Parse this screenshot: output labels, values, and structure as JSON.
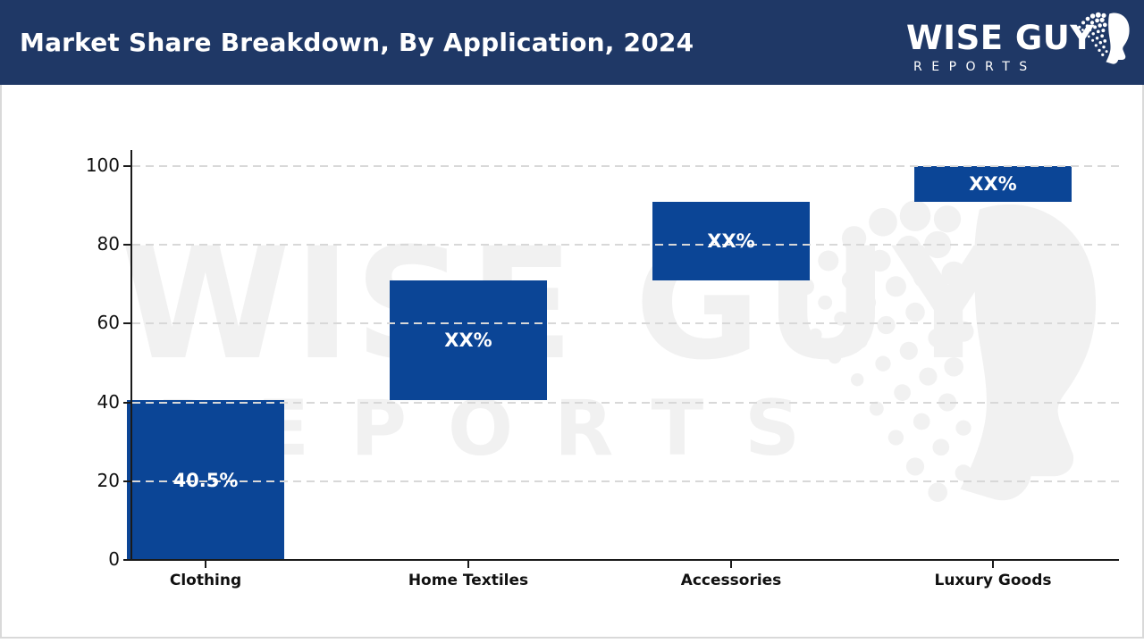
{
  "header": {
    "title": "Market Share Breakdown, By Application, 2024",
    "logo": {
      "line1": "WISE GUY",
      "line2": "REPORTS"
    }
  },
  "watermark": {
    "line1": "WISE GUY",
    "line2": "REPORTS"
  },
  "chart_data": {
    "type": "bar",
    "subtype": "floating-waterfall",
    "title": "Market Share Breakdown, By Application, 2024",
    "categories": [
      "Clothing",
      "Home Textiles",
      "Accessories",
      "Luxury Goods"
    ],
    "series": [
      {
        "name": "Market Share",
        "segments": [
          {
            "category": "Clothing",
            "start": 0,
            "end": 40.5,
            "label": "40.5%"
          },
          {
            "category": "Home Textiles",
            "start": 40.5,
            "end": 71,
            "label": "XX%"
          },
          {
            "category": "Accessories",
            "start": 71,
            "end": 91,
            "label": "XX%"
          },
          {
            "category": "Luxury Goods",
            "start": 91,
            "end": 100,
            "label": "XX%"
          }
        ]
      }
    ],
    "xlabel": "",
    "ylabel": "",
    "ylim": [
      0,
      100
    ],
    "yticks": [
      0,
      20,
      40,
      60,
      80,
      100
    ],
    "grid": {
      "horizontal": true,
      "style": "dashed",
      "over_bars": true
    },
    "legend": "none",
    "colors": {
      "bar": "#0b4596",
      "bar_label": "#ffffff",
      "axis": "#1a1a1a",
      "grid": "#d8d8d8",
      "tick_label": "#111111",
      "header_bg": "#1f3866",
      "header_text": "#ffffff",
      "watermark": "#f1f1f1"
    }
  }
}
